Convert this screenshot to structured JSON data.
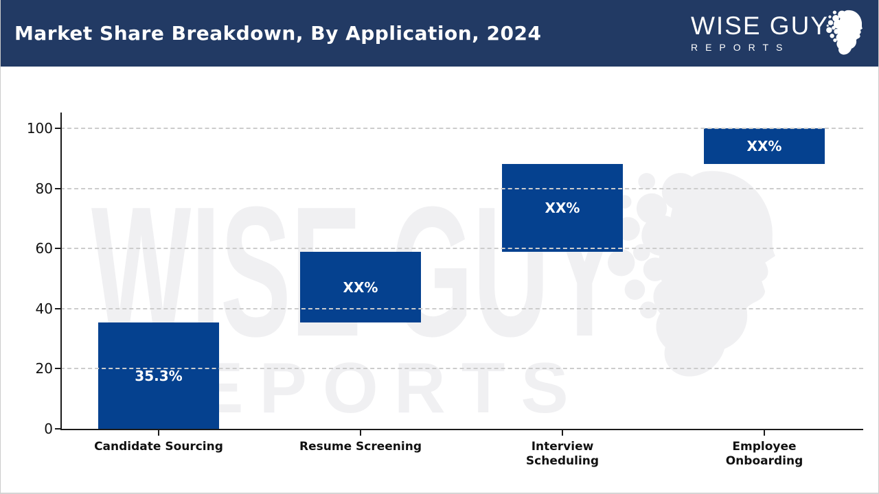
{
  "header": {
    "title": "Market Share Breakdown, By Application, 2024",
    "background_color": "#223a64",
    "logo": {
      "line1": "WISE GUY",
      "line2": "REPORTS"
    }
  },
  "watermark": {
    "line1": "WISE GUY",
    "line2": "REPORTS"
  },
  "chart_data": {
    "type": "bar",
    "subtype": "waterfall",
    "title": "Market Share Breakdown, By Application, 2024",
    "categories": [
      "Candidate Sourcing",
      "Resume Screening",
      "Interview\nScheduling",
      "Employee\nOnboarding"
    ],
    "segments": [
      {
        "category": "Candidate Sourcing",
        "start": 0,
        "end": 35.3,
        "label": "35.3%"
      },
      {
        "category": "Resume Screening",
        "start": 35.3,
        "end": 58.8,
        "label": "XX%"
      },
      {
        "category": "Interview Scheduling",
        "start": 58.8,
        "end": 88.2,
        "label": "XX%"
      },
      {
        "category": "Employee Onboarding",
        "start": 88.2,
        "end": 100,
        "label": "XX%"
      }
    ],
    "ylim": [
      0,
      100
    ],
    "yticks": [
      0,
      20,
      40,
      60,
      80,
      100
    ],
    "xlabel": "",
    "ylabel": "",
    "grid": "dashed-horizontal-over-bars",
    "legend": "none",
    "bar_color": "#05418f",
    "bar_label_color": "#ffffff",
    "gridline_color": "#cccccc",
    "axis_color": "#1a1a1a"
  }
}
